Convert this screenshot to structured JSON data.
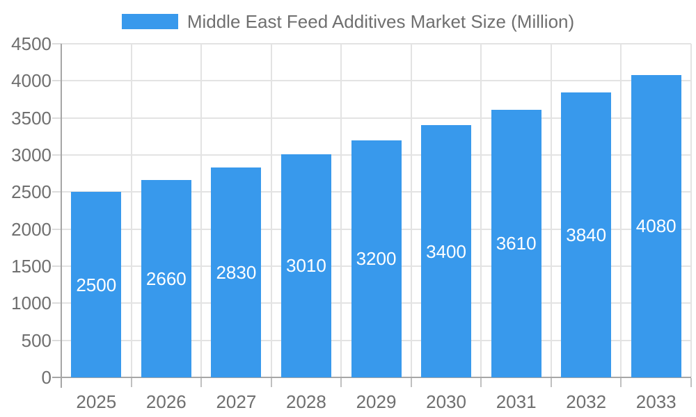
{
  "page": {
    "background": "#ffffff"
  },
  "chart_data": {
    "type": "bar",
    "title": "Middle East Feed Additives Market Size (Million)",
    "legend_position": "top",
    "legend_entries": [
      "Middle East Feed Additives Market Size (Million)"
    ],
    "categories": [
      "2025",
      "2026",
      "2027",
      "2028",
      "2029",
      "2030",
      "2031",
      "2032",
      "2033"
    ],
    "series": [
      {
        "name": "Middle East Feed Additives Market Size (Million)",
        "values": [
          2500,
          2660,
          2830,
          3010,
          3200,
          3400,
          3610,
          3840,
          4080
        ]
      }
    ],
    "bar_value_labels": [
      "2500",
      "2660",
      "2830",
      "3010",
      "3200",
      "3400",
      "3610",
      "3840",
      "4080"
    ],
    "xlabel": "",
    "ylabel": "",
    "ylim": [
      0,
      4500
    ],
    "yticks": [
      0,
      500,
      1000,
      1500,
      2000,
      2500,
      3000,
      3500,
      4000,
      4500
    ],
    "grid": true,
    "bar_label_position": "inside-middle",
    "colors": {
      "bar": "#3899ec",
      "bar_label": "#ffffff",
      "axis_text": "#6f6f6f",
      "legend_text": "#6f6f6f",
      "gridline": "#e3e3e3",
      "axis_line": "#a6a6a6",
      "x_tick": "#c0c0c0",
      "y_tick": "#dcdcdc"
    }
  }
}
